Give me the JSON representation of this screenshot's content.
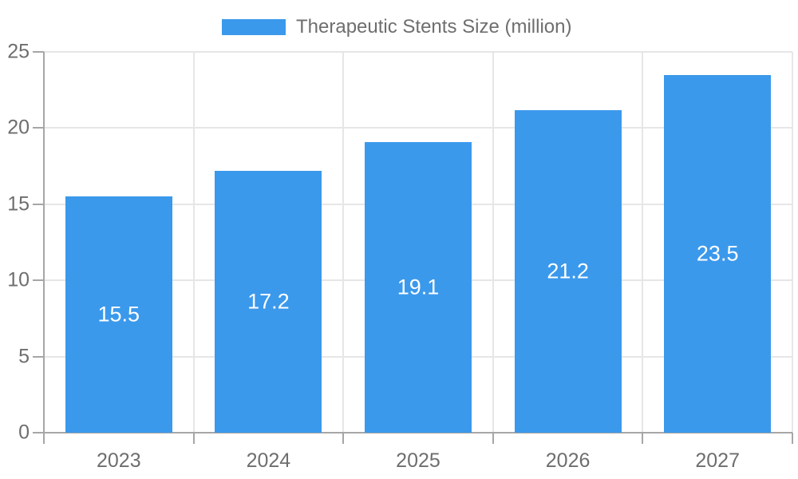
{
  "chart_data": {
    "type": "bar",
    "title": "",
    "legend": {
      "label": "Therapeutic Stents Size (million)",
      "position": "top-center"
    },
    "categories": [
      "2023",
      "2024",
      "2025",
      "2026",
      "2027"
    ],
    "series": [
      {
        "name": "Therapeutic Stents Size (million)",
        "values": [
          15.5,
          17.2,
          19.1,
          21.2,
          23.5
        ]
      }
    ],
    "value_labels": [
      "15.5",
      "17.2",
      "19.1",
      "21.2",
      "23.5"
    ],
    "xlabel": "",
    "ylabel": "",
    "ylim": [
      0,
      25
    ],
    "yticks": [
      0,
      5,
      10,
      15,
      20,
      25
    ],
    "grid": "horizontal and vertical gridlines, ticks outside axes"
  },
  "colors": {
    "background": "#ffffff",
    "bar": "#3b99ec",
    "grid": "#e6e6e6",
    "axis": "#a6a6a6",
    "label": "#6e6e6e",
    "value_label": "#ffffff"
  }
}
